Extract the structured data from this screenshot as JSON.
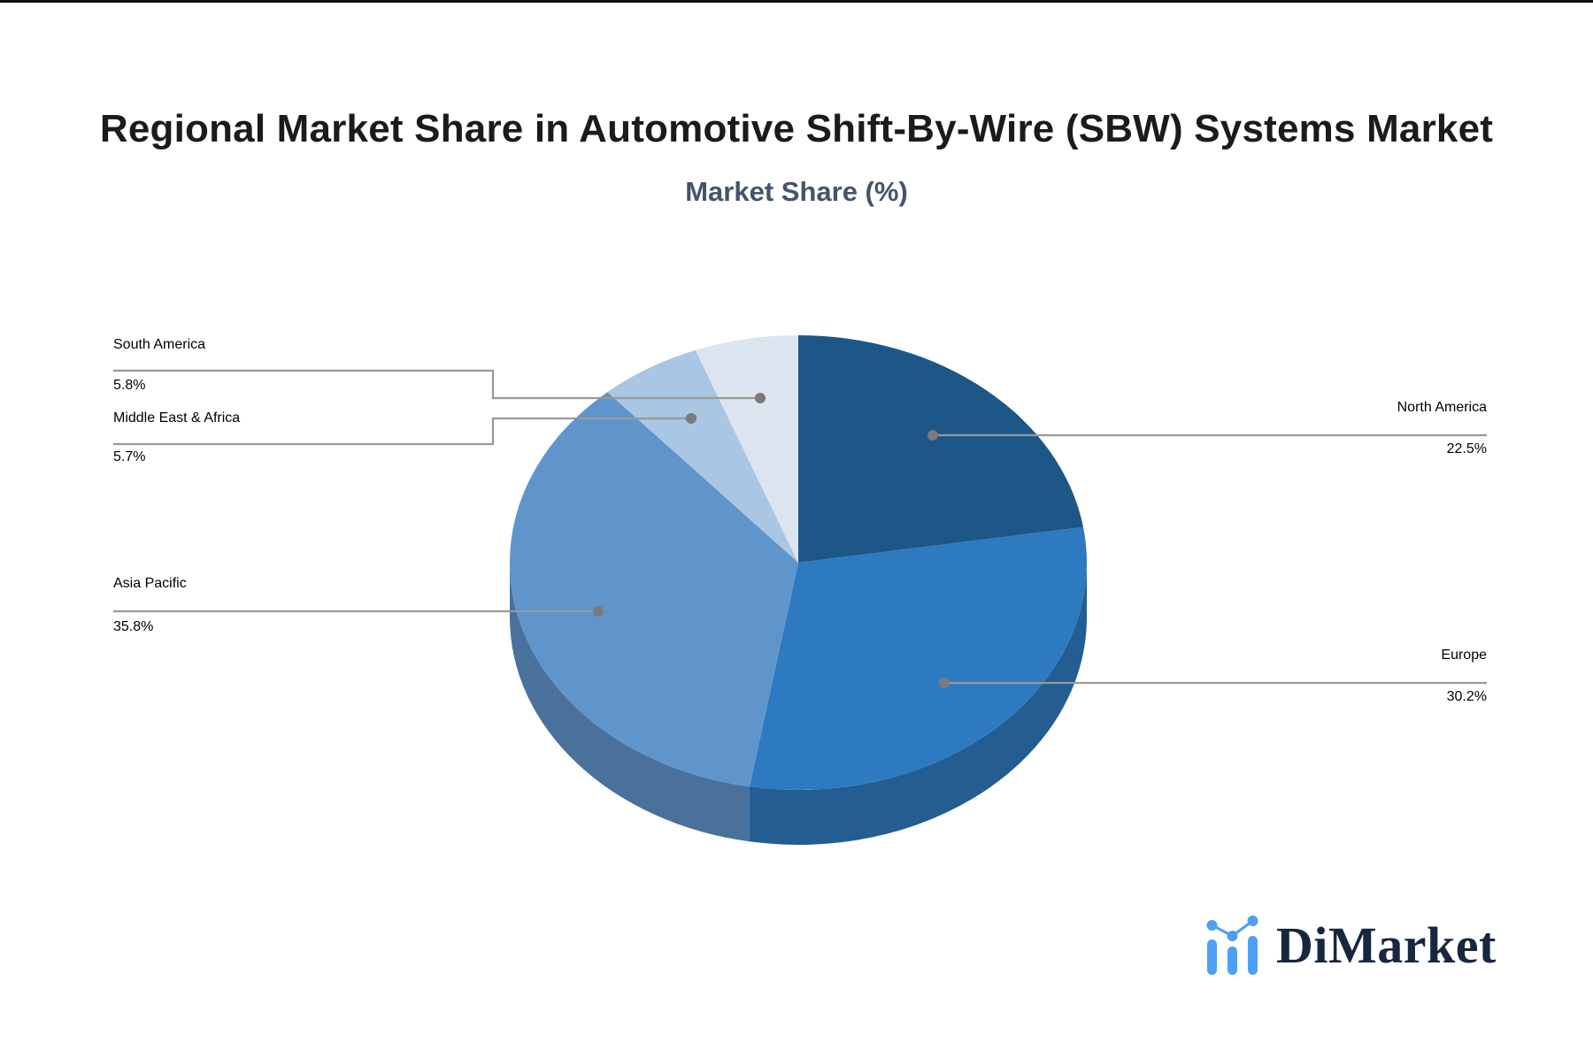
{
  "chart_data": {
    "type": "pie",
    "title": "Regional Market Share in Automotive Shift-By-Wire (SBW) Systems Market",
    "subtitle": "Market Share (%)",
    "unit": "%",
    "effect": "3d",
    "legend": "none",
    "start_angle_clockwise_from_top": 0,
    "slices": [
      {
        "label": "North America",
        "value": 22.5,
        "display": "22.5%",
        "color": "#1d5788",
        "label_side": "right"
      },
      {
        "label": "Europe",
        "value": 30.2,
        "display": "30.2%",
        "color": "#2e7ac0",
        "label_side": "right"
      },
      {
        "label": "Asia Pacific",
        "value": 35.8,
        "display": "35.8%",
        "color": "#6095cc",
        "label_side": "left"
      },
      {
        "label": "Middle East & Africa",
        "value": 5.7,
        "display": "5.7%",
        "color": "#a9c6e3",
        "label_side": "left"
      },
      {
        "label": "South America",
        "value": 5.8,
        "display": "5.8%",
        "color": "#dce4ef",
        "label_side": "left"
      }
    ],
    "leader_line_color": "#999999",
    "leader_dot_color": "#7a7a7a"
  },
  "branding": {
    "logo_text": "DiMarket",
    "logo_icon": "bar-line-chart-icon",
    "logo_icon_color": "#4da0f2",
    "logo_text_color": "#18263f"
  }
}
